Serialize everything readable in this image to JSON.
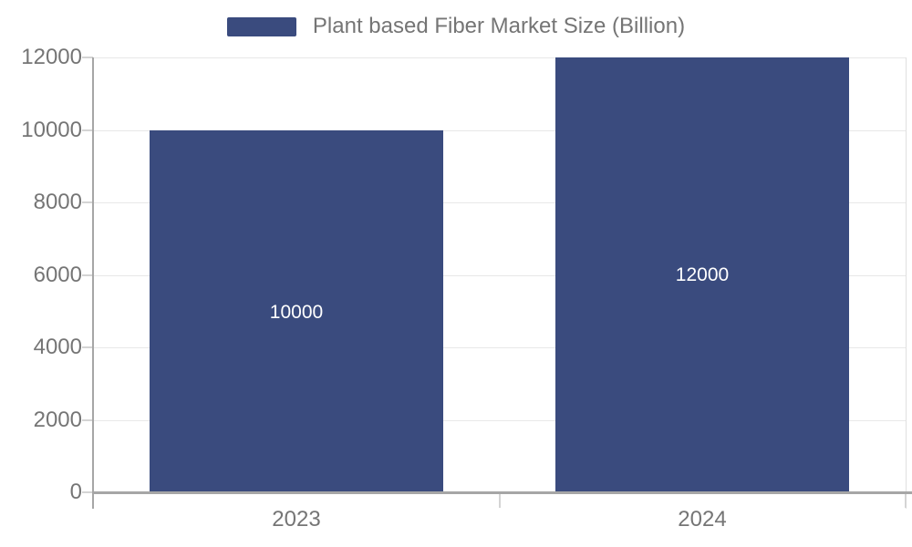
{
  "chart_data": {
    "type": "bar",
    "title": "Plant based Fiber Market Size (Billion)",
    "categories": [
      "2023",
      "2024"
    ],
    "series": [
      {
        "name": "Plant based Fiber Market Size (Billion)",
        "values": [
          10000,
          12000
        ]
      }
    ],
    "bar_value_labels": [
      "10000",
      "12000"
    ],
    "xlabel": "",
    "ylabel": "",
    "ylim": [
      0,
      12000
    ],
    "yticks": [
      0,
      2000,
      4000,
      6000,
      8000,
      10000,
      12000
    ],
    "ytick_labels": [
      "0",
      "2000",
      "4000",
      "6000",
      "8000",
      "10000",
      "12000"
    ],
    "grid": true,
    "legend_position": "top-center",
    "colors": {
      "bar": "#3A4B7E",
      "bar_label_text": "#FFFFFF",
      "axis_text": "#757575",
      "gridline": "#E8E8E8",
      "axis_line": "#A6A6A6",
      "tick": "#D4D4D4",
      "plot_border": "#E0E0E0",
      "background": "#FFFFFF"
    }
  },
  "legend": {
    "label": "Plant based Fiber Market Size (Billion)"
  }
}
